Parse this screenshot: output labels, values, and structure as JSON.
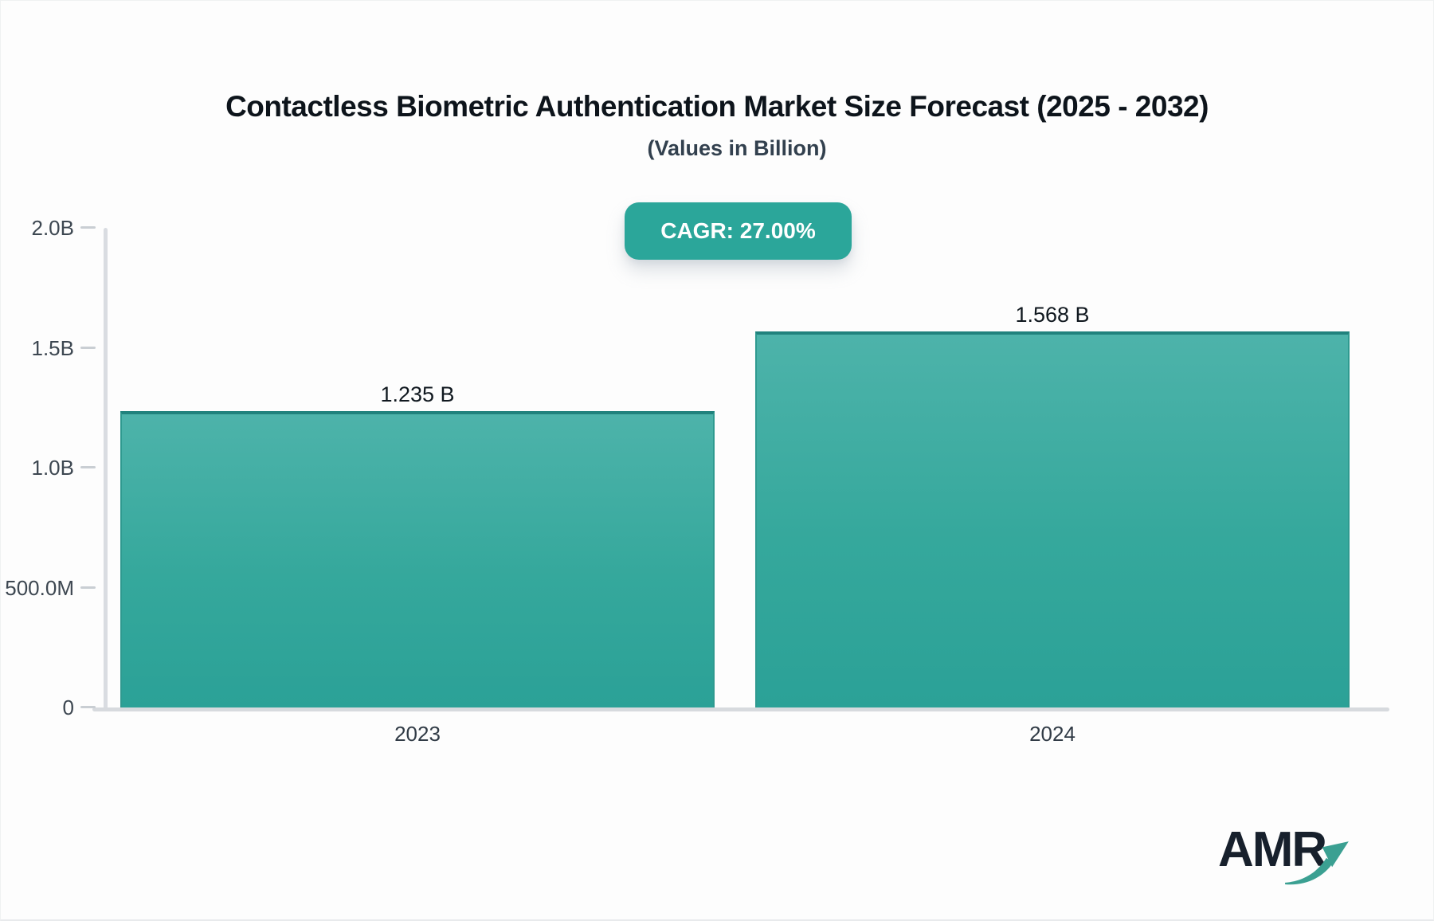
{
  "header": {
    "title": "Contactless Biometric Authentication Market Size Forecast (2025 - 2032)",
    "subtitle": "(Values in Billion)",
    "cagr_badge": "CAGR: 27.00%"
  },
  "colors": {
    "badge_background": "#2ba69a",
    "bar_top": "#4db3aa",
    "bar_bottom": "#2ba197",
    "bar_edge": "#20827d",
    "axis_line": "#d7dade",
    "logo_navy": "#17202c",
    "logo_arrow_teal": "#3ba092"
  },
  "chart_data": {
    "type": "bar",
    "title": "Contactless Biometric Authentication Market Size Forecast (2025 - 2032)",
    "subtitle": "(Values in Billion)",
    "categories": [
      "2023",
      "2024"
    ],
    "values": [
      1.235,
      1.568
    ],
    "value_labels": [
      "1.235 B",
      "1.568 B"
    ],
    "annotations": [
      "CAGR: 27.00%"
    ],
    "xlabel": "",
    "ylabel": "",
    "ylim": [
      0,
      2.0
    ],
    "yticks": [
      {
        "value": 0,
        "label": "0"
      },
      {
        "value": 0.5,
        "label": "500.0M"
      },
      {
        "value": 1.0,
        "label": "1.0B"
      },
      {
        "value": 1.5,
        "label": "1.5B"
      },
      {
        "value": 2.0,
        "label": "2.0B"
      }
    ],
    "grid": false,
    "legend": null
  },
  "footer": {
    "logo_text": "AMR"
  }
}
